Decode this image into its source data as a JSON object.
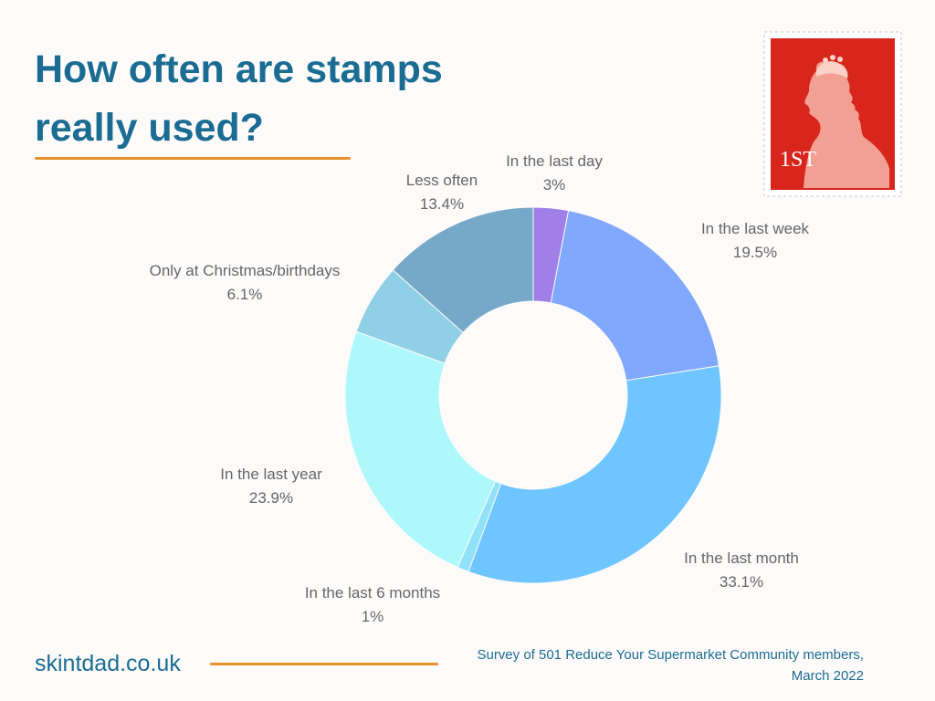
{
  "header": {
    "title_line1": "How often are stamps",
    "title_line2": "really used?"
  },
  "stamp": {
    "label": "1ST",
    "background_color": "#d8261c",
    "icon": "queen-profile-stamp-icon"
  },
  "chart_data": {
    "type": "pie",
    "variant": "donut",
    "slices": [
      {
        "label": "In the last day",
        "value": 3,
        "value_label": "3%",
        "color": "#a07fe8"
      },
      {
        "label": "In the last week",
        "value": 19.5,
        "value_label": "19.5%",
        "color": "#80a8fc"
      },
      {
        "label": "In the last month",
        "value": 33.1,
        "value_label": "33.1%",
        "color": "#6fc6ff"
      },
      {
        "label": "In the last 6 months",
        "value": 1,
        "value_label": "1%",
        "color": "#8fe2f8"
      },
      {
        "label": "In the last year",
        "value": 23.9,
        "value_label": "23.9%",
        "color": "#aef8fc"
      },
      {
        "label": "Only at Christmas/birthdays",
        "value": 6.1,
        "value_label": "6.1%",
        "color": "#8fd0e6"
      },
      {
        "label": "Less often",
        "value": 13.4,
        "value_label": "13.4%",
        "color": "#76a8c8"
      }
    ],
    "label_color": "#666666"
  },
  "footer": {
    "site": "skintdad.co.uk",
    "note_line1": "Survey of 501 Reduce Your Supermarket Community members,",
    "note_line2": "March 2022"
  },
  "colors": {
    "title": "#1b6c93",
    "accent_rule": "#e8912b",
    "background": "#fdfbfa"
  }
}
